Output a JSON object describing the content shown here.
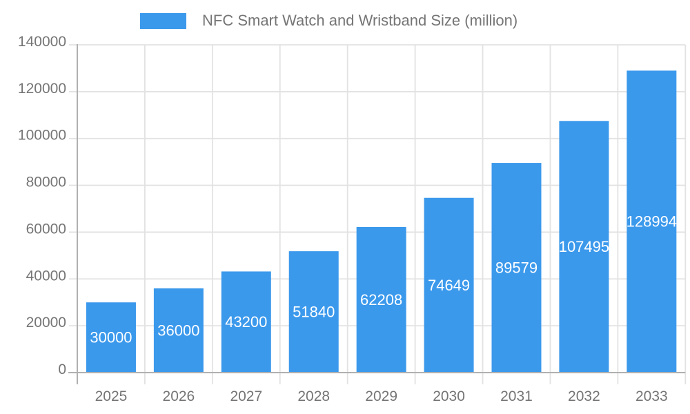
{
  "legend": {
    "items": [
      {
        "label": "NFC Smart Watch and Wristband Size (million)",
        "color": "#3B99EC"
      }
    ]
  },
  "colors": {
    "bar": "#3B99EC",
    "axis_line": "#B0B0B0",
    "grid_line": "#E2E2E2",
    "tick_label": "#757575",
    "bar_label": "#FFFFFF",
    "background": "#FFFFFF"
  },
  "chart_data": {
    "type": "bar",
    "title": "NFC Smart Watch and Wristband Size (million)",
    "categories": [
      "2025",
      "2026",
      "2027",
      "2028",
      "2029",
      "2030",
      "2031",
      "2032",
      "2033"
    ],
    "series": [
      {
        "name": "NFC Smart Watch and Wristband Size (million)",
        "values": [
          30000,
          36000,
          43200,
          51840,
          62208,
          74649,
          89579,
          107495,
          128994
        ]
      }
    ],
    "xlabel": "",
    "ylabel": "",
    "ylim": [
      0,
      140000
    ],
    "yticks": [
      0,
      20000,
      40000,
      60000,
      80000,
      100000,
      120000,
      140000
    ],
    "grid": true,
    "legend_position": "top",
    "value_labels": "inside-middle"
  }
}
